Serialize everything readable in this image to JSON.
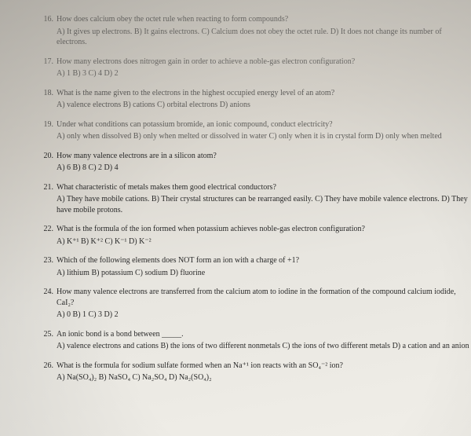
{
  "questions": [
    {
      "num": "16.",
      "text": "How does calcium obey the octet rule when reacting to form compounds?",
      "choices": "A)  It gives up electrons.   B)  It gains electrons.   C)  Calcium does not obey the octet rule.   D)  It does not change its number of electrons.",
      "cls": "faded"
    },
    {
      "num": "17.",
      "text": "How many electrons does nitrogen gain in order to achieve a noble-gas electron configuration?",
      "choices": "A)  1   B)  3   C)  4   D)  2",
      "cls": "faded"
    },
    {
      "num": "18.",
      "text": "What is the name given to the electrons in the highest occupied energy level of an atom?",
      "choices": "A)  valence electrons   B)  cations   C)  orbital electrons   D)  anions",
      "cls": "faded2"
    },
    {
      "num": "19.",
      "text": "Under what conditions can potassium bromide, an ionic compound, conduct electricity?",
      "choices": "A)  only when dissolved   B)  only when melted or dissolved in water   C)  only when it is in crystal form   D)  only when melted",
      "cls": "faded2"
    },
    {
      "num": "20.",
      "text": "How many valence electrons are in a silicon atom?",
      "choices": "A)  6   B)  8   C)  2   D)  4",
      "cls": ""
    },
    {
      "num": "21.",
      "text": "What characteristic of metals makes them good electrical conductors?",
      "choices": "A)  They have mobile cations.   B)  Their crystal structures can be rearranged easily.   C)  They have mobile valence electrons.   D)  They have mobile protons.",
      "cls": ""
    },
    {
      "num": "22.",
      "text": "What is the formula of the ion formed when potassium achieves noble-gas electron configuration?",
      "choices": "A)  K⁺¹  B)  K⁺²  C)  K⁻¹  D)  K⁻²",
      "cls": ""
    },
    {
      "num": "23.",
      "text": "Which of the following elements does NOT form an ion with a charge of +1?",
      "choices": "A)  lithium   B)  potassium   C)  sodium   D)  fluorine",
      "cls": ""
    },
    {
      "num": "24.",
      "text": "How many valence electrons are transferred from the calcium atom to iodine in the formation of the compound calcium iodide, CaI₂?",
      "choices": "A)  0   B)  1   C)  3   D)  2",
      "cls": ""
    },
    {
      "num": "25.",
      "text": "An ionic bond is a bond between _____.",
      "choices": "A)  valence electrons and cations   B)  the ions of two different nonmetals   C)  the ions of two different metals   D)  a cation and an anion",
      "cls": ""
    },
    {
      "num": "26.",
      "text": "What is the formula for sodium sulfate formed when an Na⁺¹ ion reacts with an SO₄⁻² ion?",
      "choices": "A)  Na(SO₄)₂   B)  NaSO₄   C)  Na₂SO₄   D)  Na₂(SO₄)₂",
      "cls": ""
    }
  ]
}
